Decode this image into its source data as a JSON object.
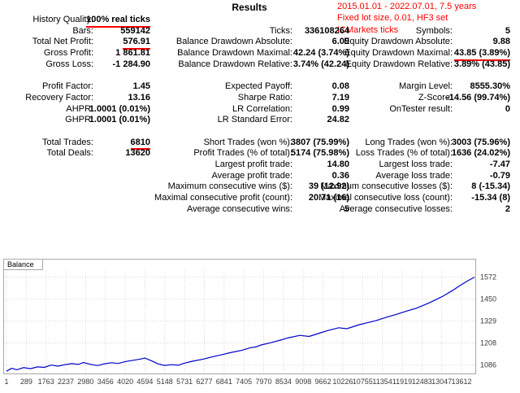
{
  "title": "Results",
  "notes": {
    "period": "2015.01.01 - 2022.07.01, 7.5 years",
    "settings": "Fixed lot size, 0.01, HF3 set",
    "source": "ICMarkets ticks",
    "color": "#ff0000"
  },
  "stats_rows": [
    {
      "cells": [
        {
          "label": "History Quality:",
          "value": "100% real ticks",
          "underline": true
        },
        null,
        null
      ]
    },
    {
      "cells": [
        {
          "label": "Bars:",
          "value": "559142"
        },
        {
          "label": "Ticks:",
          "value": "336108264"
        },
        {
          "label": "Symbols:",
          "value": "5"
        }
      ]
    },
    {
      "cells": [
        {
          "label": "Total Net Profit:",
          "value": "576.91",
          "underline": true
        },
        {
          "label": "Balance Drawdown Absolute:",
          "value": "6.09"
        },
        {
          "label": "Equity Drawdown Absolute:",
          "value": "9.88"
        }
      ]
    },
    {
      "cells": [
        {
          "label": "Gross Profit:",
          "value": "1 861.81"
        },
        {
          "label": "Balance Drawdown Maximal:",
          "value": "42.24 (3.74%)"
        },
        {
          "label": "Equity Drawdown Maximal:",
          "value": "43.85 (3.89%)",
          "underline": true
        }
      ]
    },
    {
      "cells": [
        {
          "label": "Gross Loss:",
          "value": "-1 284.90"
        },
        {
          "label": "Balance Drawdown Relative:",
          "value": "3.74% (42.24)"
        },
        {
          "label": "Equity Drawdown Relative:",
          "value": "3.89% (43.85)"
        }
      ]
    },
    {
      "cells": [
        null,
        null,
        null
      ]
    },
    {
      "cells": [
        {
          "label": "Profit Factor:",
          "value": "1.45"
        },
        {
          "label": "Expected Payoff:",
          "value": "0.08"
        },
        {
          "label": "Margin Level:",
          "value": "8555.30%"
        }
      ]
    },
    {
      "cells": [
        {
          "label": "Recovery Factor:",
          "value": "13.16"
        },
        {
          "label": "Sharpe Ratio:",
          "value": "7.19"
        },
        {
          "label": "Z-Score:",
          "value": "-14.56 (99.74%)"
        }
      ]
    },
    {
      "cells": [
        {
          "label": "AHPR:",
          "value": "1.0001 (0.01%)"
        },
        {
          "label": "LR Correlation:",
          "value": "0.99"
        },
        {
          "label": "OnTester result:",
          "value": "0"
        }
      ]
    },
    {
      "cells": [
        {
          "label": "GHPR:",
          "value": "1.0001 (0.01%)"
        },
        {
          "label": "LR Standard Error:",
          "value": "24.82"
        },
        null
      ]
    },
    {
      "cells": [
        null,
        null,
        null
      ]
    },
    {
      "cells": [
        {
          "label": "Total Trades:",
          "value": "6810",
          "underline": true
        },
        {
          "label": "Short Trades (won %):",
          "value": "3807 (75.99%)"
        },
        {
          "label": "Long Trades (won %):",
          "value": "3003 (75.96%)"
        }
      ]
    },
    {
      "cells": [
        {
          "label": "Total Deals:",
          "value": "13620"
        },
        {
          "label": "Profit Trades (% of total):",
          "value": "5174 (75.98%)"
        },
        {
          "label": "Loss Trades (% of total):",
          "value": "1636 (24.02%)"
        }
      ]
    },
    {
      "cells": [
        null,
        {
          "label": "Largest profit trade:",
          "value": "14.80"
        },
        {
          "label": "Largest loss trade:",
          "value": "-7.47"
        }
      ]
    },
    {
      "cells": [
        null,
        {
          "label": "Average profit trade:",
          "value": "0.36"
        },
        {
          "label": "Average loss trade:",
          "value": "-0.79"
        }
      ]
    },
    {
      "cells": [
        null,
        {
          "label": "Maximum consecutive wins ($):",
          "value": "39 (12.92)"
        },
        {
          "label": "Maximum consecutive losses ($):",
          "value": "8 (-15.34)"
        }
      ]
    },
    {
      "cells": [
        null,
        {
          "label": "Maximal consecutive profit (count):",
          "value": "20.71 (16)"
        },
        {
          "label": "Maximal consecutive loss (count):",
          "value": "-15.34 (8)"
        }
      ]
    },
    {
      "cells": [
        null,
        {
          "label": "Average consecutive wins:",
          "value": "5"
        },
        {
          "label": "Average consecutive losses:",
          "value": "2"
        }
      ]
    }
  ],
  "chart_data": {
    "type": "line",
    "title": "Balance",
    "line_color": "#0000cc",
    "grid_color": "#d8d8d8",
    "ylim": [
      1035,
      1615
    ],
    "xlim": [
      1,
      13612
    ],
    "y_ticks": [
      1086,
      1208,
      1329,
      1450,
      1572
    ],
    "x_ticks": [
      1,
      289,
      1763,
      2237,
      2980,
      3456,
      4020,
      4594,
      5148,
      5731,
      6277,
      6841,
      7405,
      7970,
      8534,
      9098,
      9662,
      10226,
      10755,
      11354,
      11919,
      12483,
      13047,
      13612
    ],
    "series": [
      {
        "name": "Balance",
        "points": [
          [
            1,
            1052
          ],
          [
            150,
            1068
          ],
          [
            300,
            1060
          ],
          [
            500,
            1072
          ],
          [
            700,
            1066
          ],
          [
            900,
            1076
          ],
          [
            1100,
            1073
          ],
          [
            1300,
            1086
          ],
          [
            1500,
            1080
          ],
          [
            1700,
            1088
          ],
          [
            1900,
            1094
          ],
          [
            2100,
            1090
          ],
          [
            2237,
            1100
          ],
          [
            2450,
            1090
          ],
          [
            2650,
            1083
          ],
          [
            2850,
            1093
          ],
          [
            3050,
            1099
          ],
          [
            3250,
            1095
          ],
          [
            3456,
            1105
          ],
          [
            3700,
            1113
          ],
          [
            3900,
            1119
          ],
          [
            4020,
            1125
          ],
          [
            4200,
            1111
          ],
          [
            4400,
            1093
          ],
          [
            4594,
            1084
          ],
          [
            4800,
            1088
          ],
          [
            5000,
            1085
          ],
          [
            5148,
            1095
          ],
          [
            5400,
            1107
          ],
          [
            5731,
            1119
          ],
          [
            6000,
            1132
          ],
          [
            6277,
            1144
          ],
          [
            6500,
            1154
          ],
          [
            6841,
            1167
          ],
          [
            7100,
            1182
          ],
          [
            7250,
            1186
          ],
          [
            7405,
            1197
          ],
          [
            7700,
            1210
          ],
          [
            7970,
            1224
          ],
          [
            8200,
            1237
          ],
          [
            8534,
            1250
          ],
          [
            8800,
            1244
          ],
          [
            9098,
            1262
          ],
          [
            9350,
            1277
          ],
          [
            9662,
            1292
          ],
          [
            9900,
            1287
          ],
          [
            10226,
            1307
          ],
          [
            10500,
            1320
          ],
          [
            10755,
            1332
          ],
          [
            11000,
            1347
          ],
          [
            11354,
            1367
          ],
          [
            11600,
            1382
          ],
          [
            11919,
            1400
          ],
          [
            12100,
            1414
          ],
          [
            12300,
            1430
          ],
          [
            12483,
            1447
          ],
          [
            12700,
            1467
          ],
          [
            12900,
            1490
          ],
          [
            13047,
            1507
          ],
          [
            13200,
            1527
          ],
          [
            13400,
            1550
          ],
          [
            13612,
            1572
          ]
        ]
      }
    ]
  }
}
